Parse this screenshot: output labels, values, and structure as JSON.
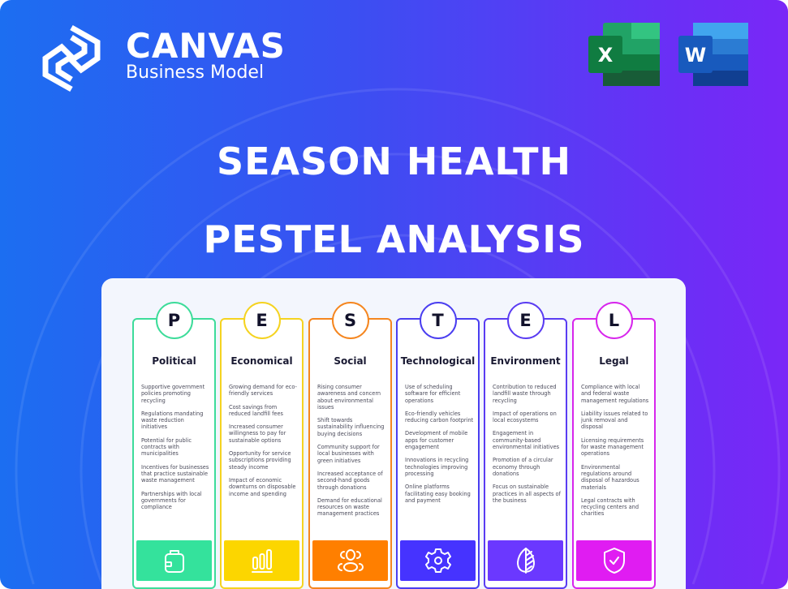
{
  "brand": {
    "name": "CANVAS",
    "tagline": "Business Model"
  },
  "apps": [
    {
      "name": "excel-icon",
      "letter": "X"
    },
    {
      "name": "word-icon",
      "letter": "W"
    }
  ],
  "title": {
    "line1": "SEASON HEALTH",
    "line2": "PESTEL ANALYSIS"
  },
  "columns": [
    {
      "letter": "P",
      "title": "Political",
      "color": "#3ddc9a",
      "fill": "#34e29c",
      "icon": "briefcase-icon",
      "items": [
        "Supportive government policies promoting recycling",
        "Regulations mandating waste reduction initiatives",
        "Potential for public contracts with municipalities",
        "Incentives for businesses that practice sustainable waste management",
        "Partnerships with local governments for compliance"
      ]
    },
    {
      "letter": "E",
      "title": "Economical",
      "color": "#f5d320",
      "fill": "#fcd600",
      "icon": "bar-chart-icon",
      "items": [
        "Growing demand for eco-friendly services",
        "Cost savings from reduced landfill fees",
        "Increased consumer willingness to pay for sustainable options",
        "Opportunity for service subscriptions providing steady income",
        "Impact of economic downturns on disposable income and spending"
      ]
    },
    {
      "letter": "S",
      "title": "Social",
      "color": "#f5861f",
      "fill": "#ff7f00",
      "icon": "people-icon",
      "items": [
        "Rising consumer awareness and concern about environmental issues",
        "Shift towards sustainability influencing buying decisions",
        "Community support for local businesses with green initiatives",
        "Increased acceptance of second-hand goods through donations",
        "Demand for educational resources on waste management practices"
      ]
    },
    {
      "letter": "T",
      "title": "Technological",
      "color": "#4a3ef0",
      "fill": "#4633ff",
      "icon": "gear-icon",
      "items": [
        "Use of scheduling software for efficient operations",
        "Eco-friendly vehicles reducing carbon footprint",
        "Development of mobile apps for customer engagement",
        "Innovations in recycling technologies improving processing",
        "Online platforms facilitating easy booking and payment"
      ]
    },
    {
      "letter": "E",
      "title": "Environment",
      "color": "#5a3cf2",
      "fill": "#6b38ff",
      "icon": "leaf-icon",
      "items": [
        "Contribution to reduced landfill waste through recycling",
        "Impact of operations on local ecosystems",
        "Engagement in community-based environmental initiatives",
        "Promotion of a circular economy through donations",
        "Focus on sustainable practices in all aspects of the business"
      ]
    },
    {
      "letter": "L",
      "title": "Legal",
      "color": "#d726ec",
      "fill": "#e01cf2",
      "icon": "shield-check-icon",
      "items": [
        "Compliance with local and federal waste management regulations",
        "Liability issues related to junk removal and disposal",
        "Licensing requirements for waste management operations",
        "Environmental regulations around disposal of hazardous materials",
        "Legal contracts with recycling centers and charities"
      ]
    }
  ]
}
